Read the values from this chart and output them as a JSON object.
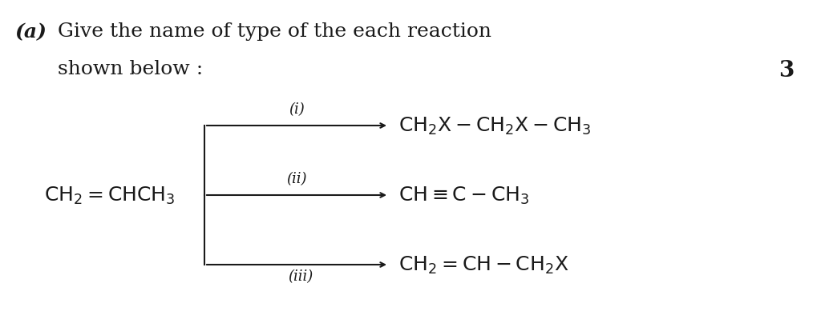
{
  "background_color": "#ffffff",
  "title_part_a": "(a)",
  "title_text1": "Give the name of type of the each reaction",
  "title_text2": "shown below :",
  "marks": "3",
  "reactant": "CH$_2$ = CHCH$_3$",
  "product_i": "CH$_2$X – CH$_2$X – CH$_3$",
  "product_ii": "CH ≡ C – CH$_3$",
  "product_iii": "CH$_2$ = CH – CH$_2$X",
  "label_i": "(i)",
  "label_ii": "(ii)",
  "label_iii": "(iii)",
  "font_size_title": 18,
  "font_size_chem": 18,
  "font_size_label": 13,
  "font_size_marks": 20,
  "text_color": "#1a1a1a"
}
